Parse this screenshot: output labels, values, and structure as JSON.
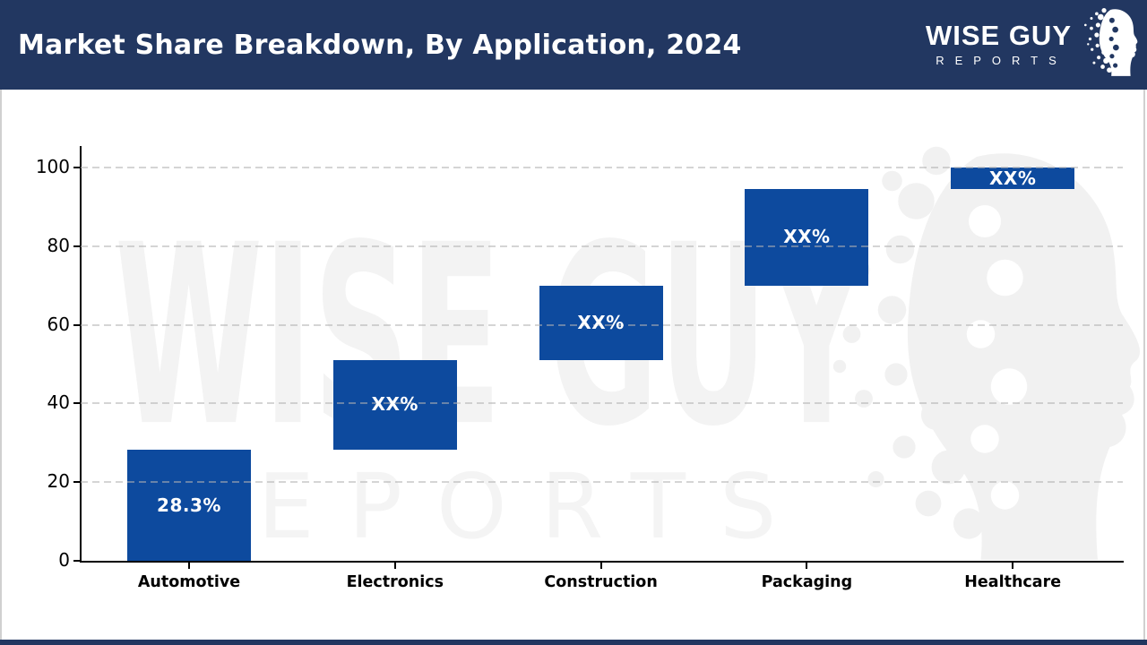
{
  "header": {
    "title": "Market Share Breakdown, By Application, 2024",
    "logo": {
      "line1": "WISE GUY",
      "line2": "REPORTS"
    },
    "bg_color": "#223761"
  },
  "watermark": {
    "line1": "WISE GUY",
    "line2": "REPORTS"
  },
  "chart_data": {
    "type": "bar",
    "subtype": "waterfall",
    "title": "Market Share Breakdown, By Application, 2024",
    "categories": [
      "Automotive",
      "Electronics",
      "Construction",
      "Packaging",
      "Healthcare"
    ],
    "values": [
      28.3,
      22.7,
      19.0,
      24.5,
      5.5
    ],
    "segments": [
      {
        "category": "Automotive",
        "start": 0,
        "end": 28.3,
        "label": "28.3%"
      },
      {
        "category": "Electronics",
        "start": 28.3,
        "end": 51.0,
        "label": "XX%"
      },
      {
        "category": "Construction",
        "start": 51.0,
        "end": 70.0,
        "label": "XX%"
      },
      {
        "category": "Packaging",
        "start": 70.0,
        "end": 94.5,
        "label": "XX%"
      },
      {
        "category": "Healthcare",
        "start": 94.5,
        "end": 100.0,
        "label": "XX%"
      }
    ],
    "xlabel": "",
    "ylabel": "",
    "yticks": [
      0,
      20,
      40,
      60,
      80,
      100
    ],
    "ylim": [
      0,
      105.5
    ],
    "grid": true,
    "grid_style": "dashed",
    "legend": false,
    "bar_color": "#0d4a9e",
    "label_color": "#ffffff",
    "grid_color_rgba": "rgba(178,178,178,0.55)",
    "axis_color": "#000000",
    "watermark_color": "#f1f1f1",
    "border_color": "#d0d0d0"
  }
}
